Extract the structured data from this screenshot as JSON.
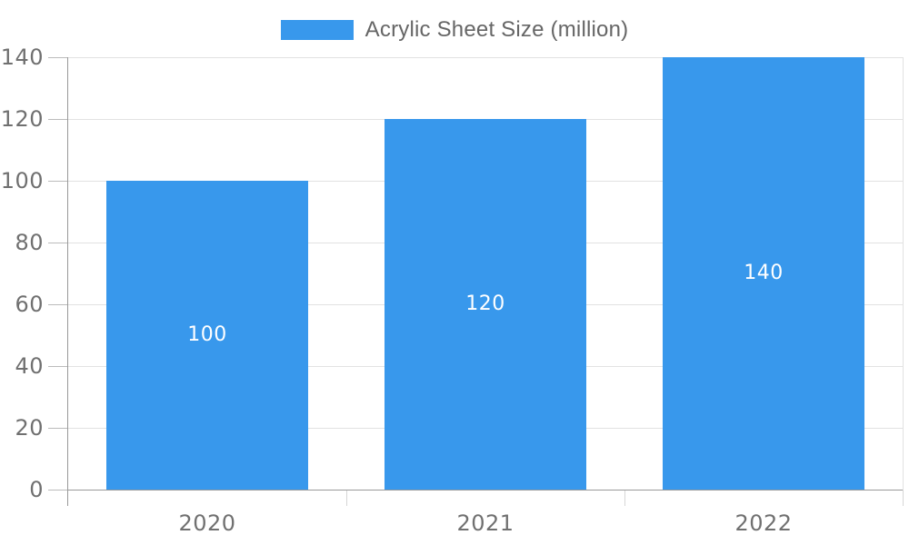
{
  "chart_data": {
    "type": "bar",
    "title": "Acrylic Sheet Size (million)",
    "legend": {
      "label": "Acrylic Sheet Size (million)",
      "position": "top-center"
    },
    "categories": [
      "2020",
      "2021",
      "2022"
    ],
    "values": [
      100,
      120,
      140
    ],
    "data_labels": [
      "100",
      "120",
      "140"
    ],
    "series": [
      {
        "name": "Acrylic Sheet Size (million)",
        "values": [
          100,
          120,
          140
        ]
      }
    ],
    "xlabel": "",
    "ylabel": "",
    "ylim": [
      0,
      140
    ],
    "yticks": [
      0,
      20,
      40,
      60,
      80,
      100,
      120,
      140
    ],
    "grid": "horizontal",
    "colors": {
      "bar": "#3898EC",
      "grid": "#E2E2E2",
      "axis": "#999999",
      "tick": "#BBBBBB",
      "boundary_tick": "#D6D6D6",
      "axis_text": "#707070",
      "legend_text": "#666666",
      "data_label": "#FFFFFF",
      "background": "#FFFFFF"
    }
  }
}
